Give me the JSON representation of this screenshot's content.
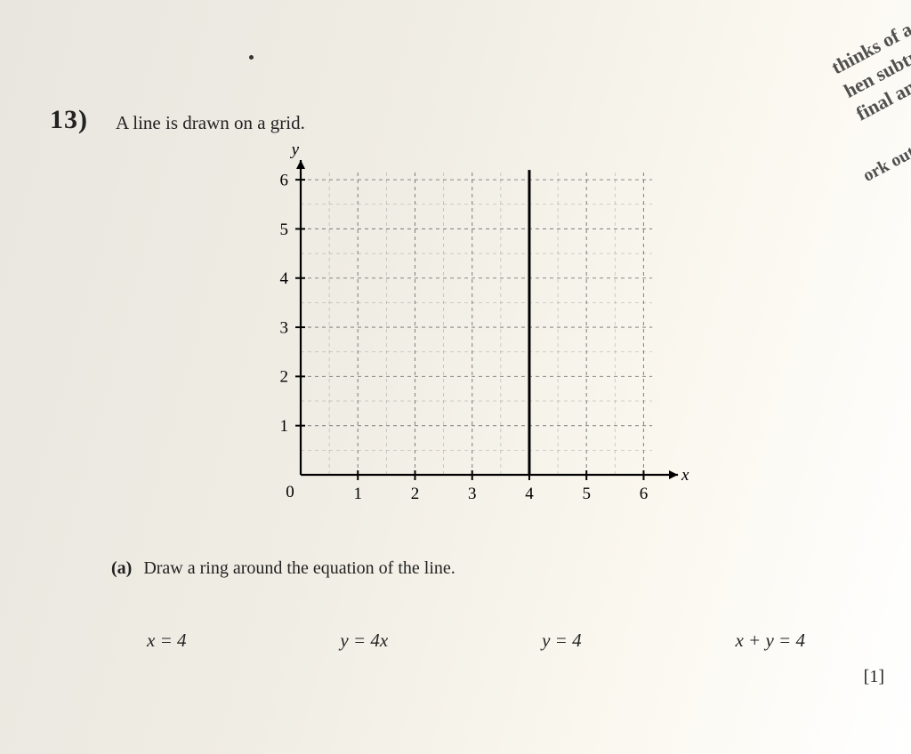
{
  "question": {
    "number": "13",
    "prompt": "A line is drawn on a grid."
  },
  "chart": {
    "type": "line",
    "xlim": [
      0,
      6.6
    ],
    "ylim": [
      0,
      6.4
    ],
    "xtick_step": 1,
    "ytick_step": 1,
    "xticks": [
      0,
      1,
      2,
      3,
      4,
      5,
      6
    ],
    "yticks": [
      1,
      2,
      3,
      4,
      5,
      6
    ],
    "minor_per_major": 2,
    "xlabel": "x",
    "ylabel": "y",
    "origin_label": "0",
    "axis_color": "#000000",
    "major_grid_color": "#333333",
    "minor_grid_color": "#666666",
    "grid_dash": "4 4",
    "background_color": "transparent",
    "line": {
      "x": 4,
      "y_from": 0,
      "y_to": 6.2,
      "color": "#000000",
      "width": 3
    },
    "axis_width": 2.2,
    "tick_len": 6,
    "label_fontsize": 19,
    "tick_fontsize": 19,
    "arrowheads": true
  },
  "part_a": {
    "label": "(a)",
    "text": "Draw a ring around the equation of the line."
  },
  "options": {
    "o1": "x = 4",
    "o2": "y = 4x",
    "o3": "y = 4",
    "o4": "x + y = 4"
  },
  "marks": "[1]",
  "bleed": {
    "l1": "thinks of a n",
    "l2": "hen subtract",
    "l3": "final answ",
    "l4": "ork out"
  }
}
